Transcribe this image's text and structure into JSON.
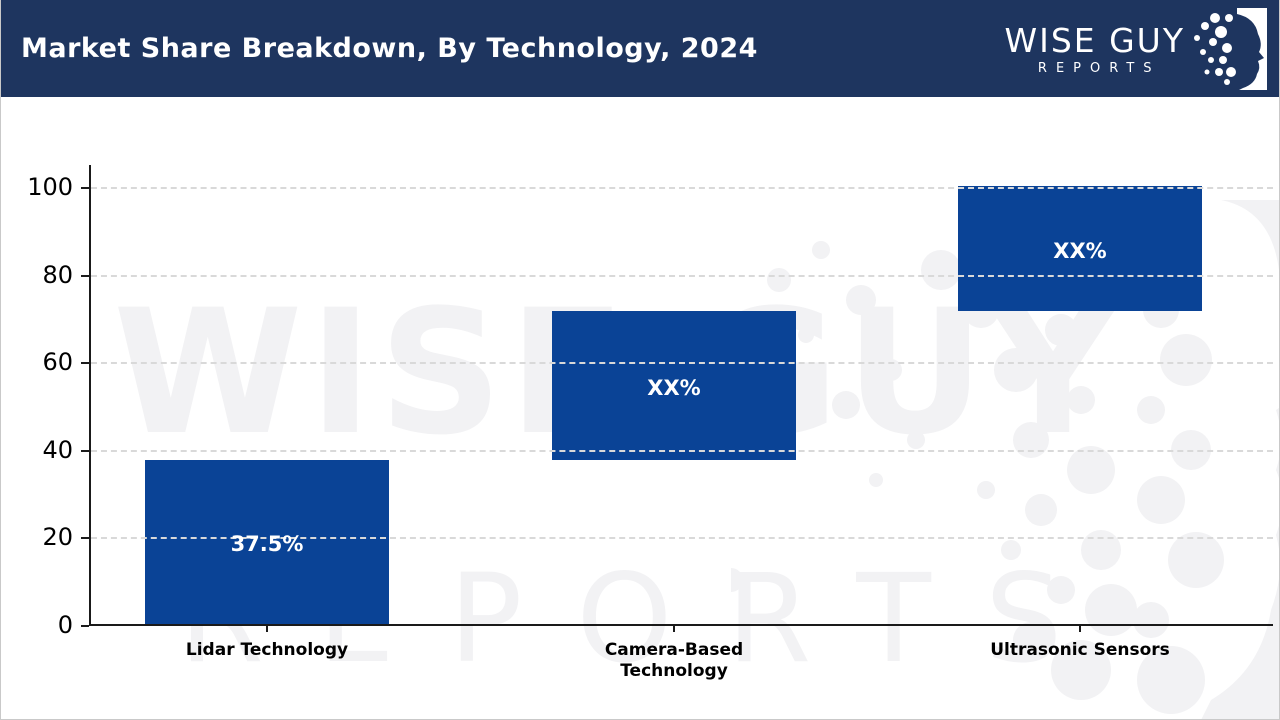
{
  "header": {
    "title": "Market Share Breakdown, By Technology, 2024",
    "logo": {
      "line1": "WISE GUY",
      "line2": "REPORTS"
    }
  },
  "watermark": {
    "line1": "WISE GUY",
    "line2": "REPORTS"
  },
  "chart_data": {
    "type": "bar",
    "subtype": "waterfall-floating-bars",
    "title": "Market Share Breakdown, By Technology, 2024",
    "categories": [
      "Lidar Technology",
      "Camera-Based\nTechnology",
      "Ultrasonic Sensors"
    ],
    "segments": [
      {
        "category": "Lidar Technology",
        "base": 0,
        "top": 37.5,
        "label": "37.5%"
      },
      {
        "category": "Camera-Based Technology",
        "base": 37.5,
        "top": 71.4,
        "label": "XX%"
      },
      {
        "category": "Ultrasonic Sensors",
        "base": 71.4,
        "top": 100,
        "label": "XX%"
      }
    ],
    "xlabel": "",
    "ylabel": "",
    "ylim": [
      0,
      100
    ],
    "yticks": [
      0,
      20,
      40,
      60,
      80,
      100
    ],
    "grid": "horizontal-dashed",
    "legend": "none",
    "bar_color": "#0a4396",
    "bar_label_color": "#ffffff"
  },
  "colors": {
    "header_bg": "#1e355f",
    "bar": "#0a4396",
    "gridline": "#d9d9d9",
    "axis": "#1a1a1a",
    "watermark": "#f2f2f4"
  }
}
